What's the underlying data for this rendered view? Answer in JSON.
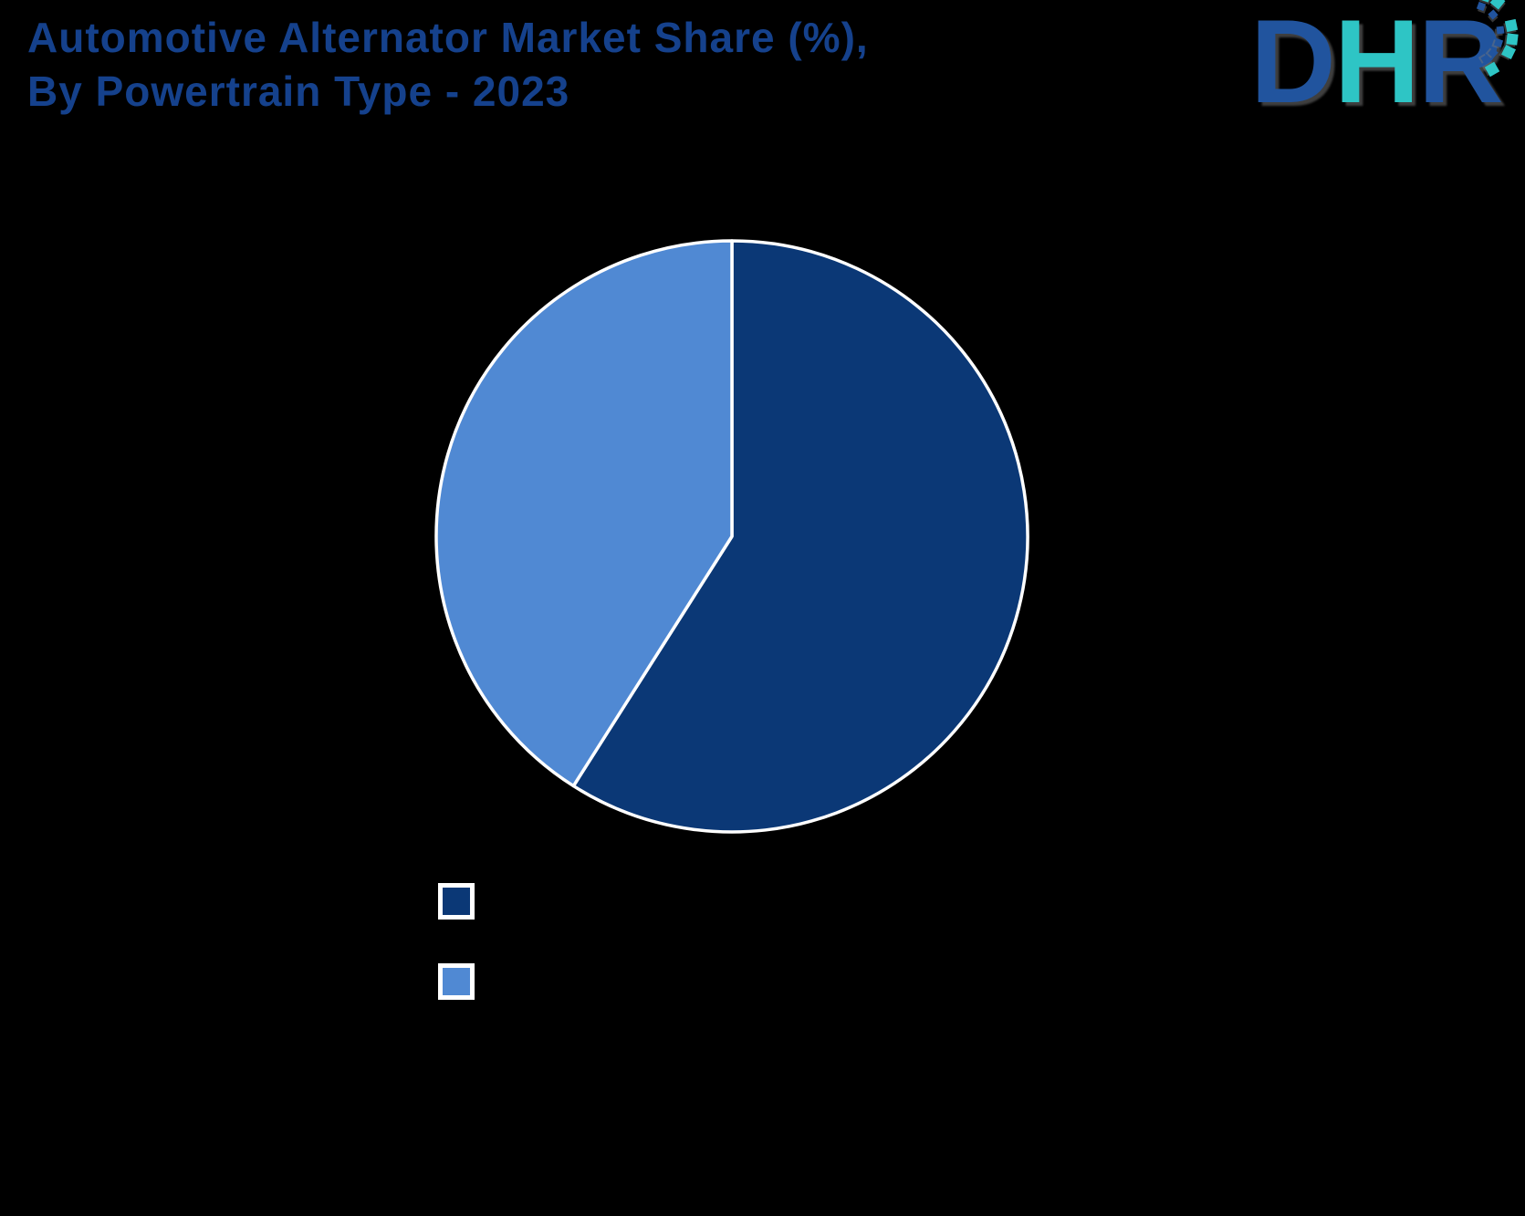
{
  "title": {
    "line1": "Automotive Alternator Market Share (%),",
    "line2": "By Powertrain Type - 2023",
    "color": "#15418c"
  },
  "logo": {
    "letters": [
      {
        "char": "D",
        "color": "#21549e"
      },
      {
        "char": "H",
        "color": "#2ec5c5"
      },
      {
        "char": "R",
        "color": "#21549e"
      }
    ],
    "dot_colors": {
      "teal": "#2ec5c5",
      "blue": "#21549e"
    }
  },
  "chart_data": {
    "type": "pie",
    "title": "Automotive Alternator Market Share (%), By Powertrain Type - 2023",
    "segments": [
      {
        "label": "",
        "value": 59,
        "color": "#0b3876"
      },
      {
        "label": "",
        "value": 41,
        "color": "#5089d3"
      }
    ],
    "start_angle_deg": 0,
    "direction": "clockwise",
    "outline_color": "#ffffff",
    "legend_position": "bottom-left",
    "data_labels_visible": false,
    "background": "#000000"
  }
}
